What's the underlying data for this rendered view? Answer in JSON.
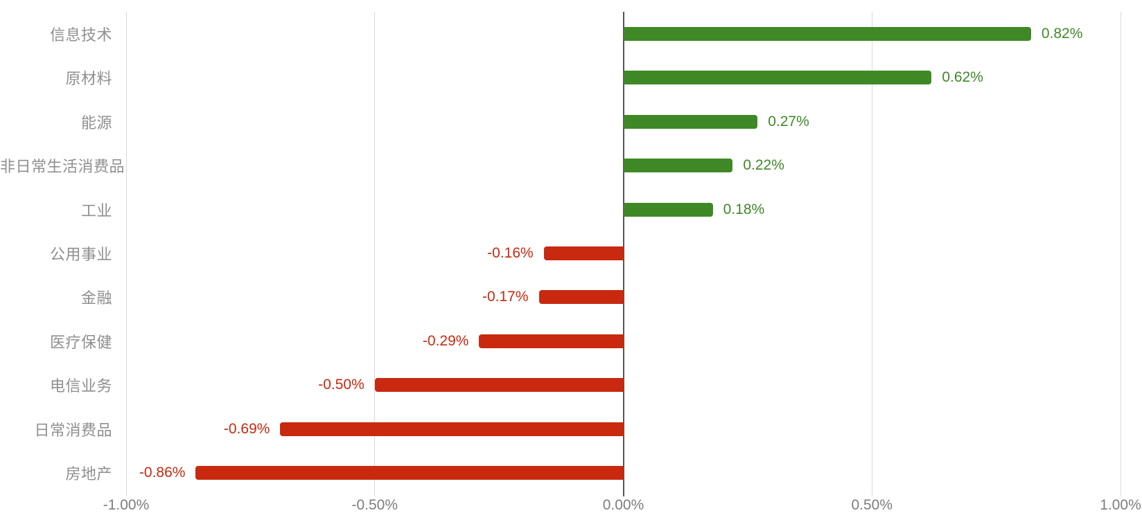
{
  "chart_data": {
    "type": "bar",
    "orientation": "horizontal",
    "title": "",
    "xlabel": "",
    "ylabel": "",
    "categories": [
      "信息技术",
      "原材料",
      "能源",
      "非日常生活消费品",
      "工业",
      "公用事业",
      "金融",
      "医疗保健",
      "电信业务",
      "日常消费品",
      "房地产"
    ],
    "values": [
      0.82,
      0.62,
      0.27,
      0.22,
      0.18,
      -0.16,
      -0.17,
      -0.29,
      -0.5,
      -0.69,
      -0.86
    ],
    "value_labels": [
      "0.82%",
      "0.62%",
      "0.27%",
      "0.22%",
      "0.18%",
      "-0.16%",
      "-0.17%",
      "-0.29%",
      "-0.50%",
      "-0.69%",
      "-0.86%"
    ],
    "x_ticks": [
      "-1.00%",
      "-0.50%",
      "0.00%",
      "0.50%",
      "1.00%"
    ],
    "x_tick_values": [
      -1.0,
      -0.5,
      0.0,
      0.5,
      1.0
    ],
    "xlim": [
      -1.0,
      1.0
    ],
    "grid": true,
    "legend": "none",
    "positive_color": "#3e8926",
    "negative_color": "#c8290f",
    "category_label_color": "#8f8f8f",
    "tick_label_color": "#7d7d7d",
    "gridline_color": "#d9d9d9",
    "zero_line_color": "#555555"
  }
}
